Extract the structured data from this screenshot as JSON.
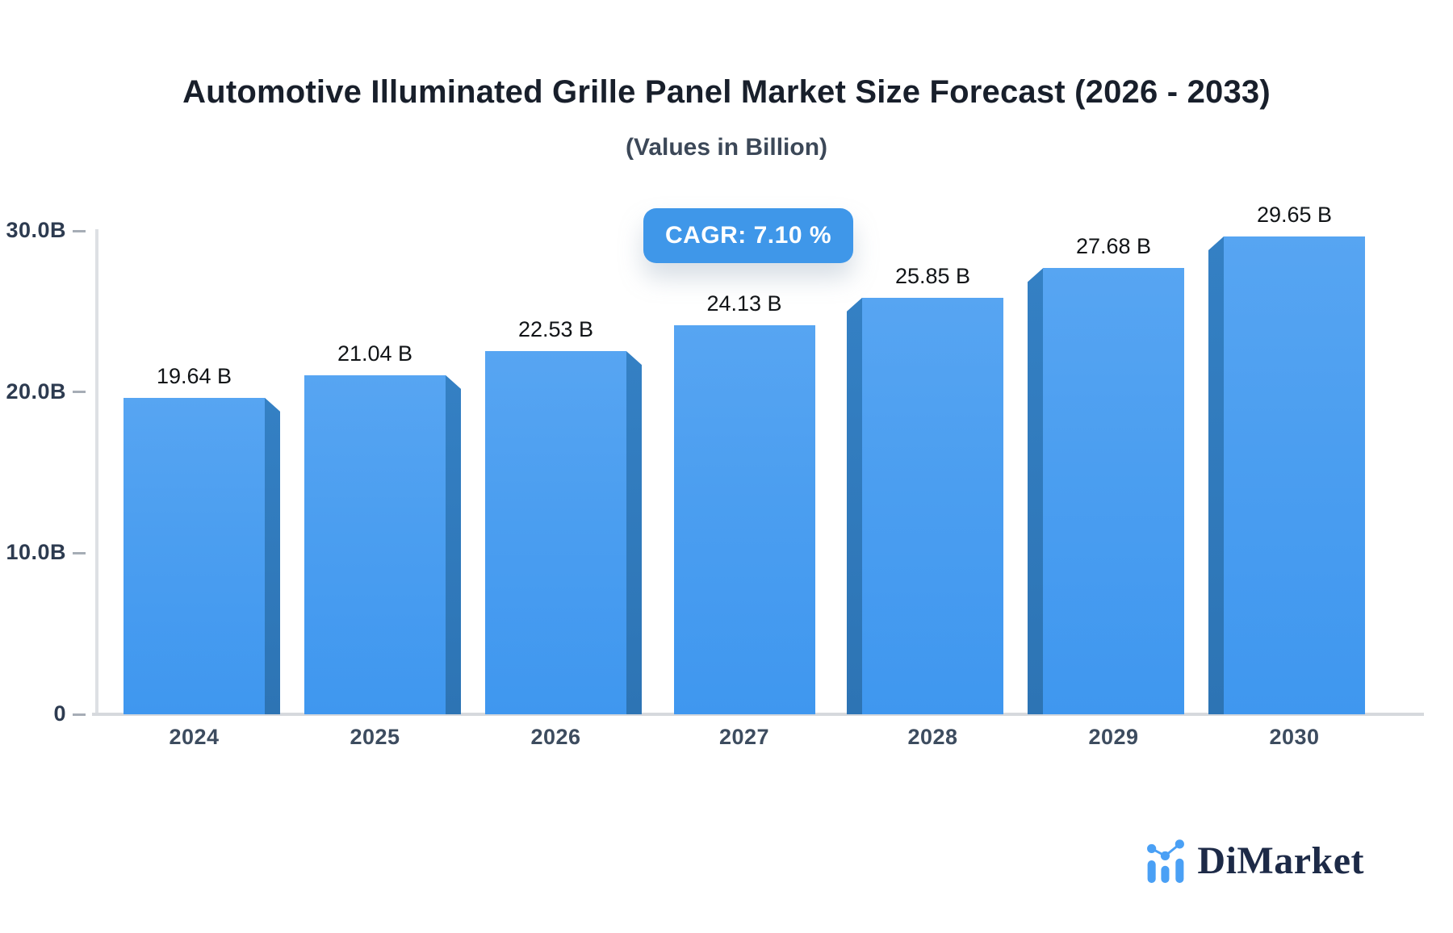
{
  "title": "Automotive Illuminated Grille Panel Market Size Forecast (2026 - 2033)",
  "subtitle": "(Values in Billion)",
  "badge": {
    "label": "CAGR: 7.10 %",
    "bg_color": "#3f97e9",
    "text_color": "#ffffff"
  },
  "brand": {
    "name": "DiMarket",
    "icon": "mini-bar-chart-icon",
    "text_color": "#1d2a47",
    "icon_color": "#4aa0f5"
  },
  "chart_data": {
    "type": "bar",
    "title": "Automotive Illuminated Grille Panel Market Size Forecast (2026 - 2033)",
    "subtitle": "(Values in Billion)",
    "categories": [
      "2024",
      "2025",
      "2026",
      "2027",
      "2028",
      "2029",
      "2030"
    ],
    "values": [
      19.64,
      21.04,
      22.53,
      24.13,
      25.85,
      27.68,
      29.65
    ],
    "value_labels": [
      "19.64 B",
      "21.04 B",
      "22.53 B",
      "24.13 B",
      "25.85 B",
      "27.68 B",
      "29.65 B"
    ],
    "xlabel": "",
    "ylabel": "",
    "ylim": [
      0,
      30
    ],
    "yticks": [
      {
        "value": 0,
        "label": "0"
      },
      {
        "value": 10,
        "label": "10.0B"
      },
      {
        "value": 20,
        "label": "20.0B"
      },
      {
        "value": 30,
        "label": "30.0B"
      }
    ],
    "grid": false,
    "legend": "none",
    "annotation": "CAGR: 7.10 %",
    "bar_style": "3d-perspective-center",
    "colors": {
      "bar_face_top": "#57a5f2",
      "bar_face_bottom": "#3f97ef",
      "bar_side": "#2d74b4",
      "axis_line": "#dde0e4",
      "baseline": "#d6d9dd",
      "tick_text": "#2d3b50",
      "value_text": "#111417",
      "year_text": "#3d4c5f"
    }
  }
}
